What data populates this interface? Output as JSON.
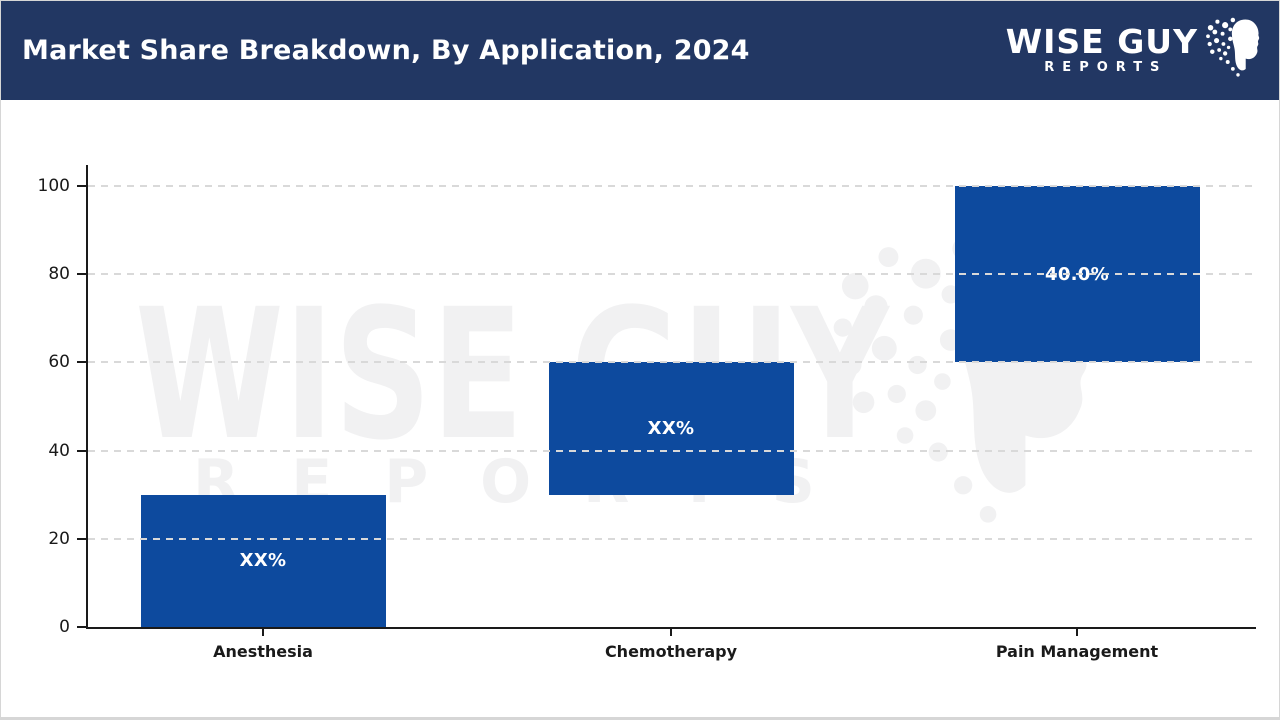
{
  "header": {
    "title": "Market Share Breakdown, By Application, 2024",
    "logo": {
      "line1": "WISE GUY",
      "line2": "REPORTS"
    }
  },
  "watermark": {
    "line1": "WISE GUY",
    "line2": "REPORTS"
  },
  "chart_data": {
    "type": "bar",
    "subtype": "floating-stepped-bars",
    "title": "Market Share Breakdown, By Application, 2024",
    "categories": [
      "Anesthesia",
      "Chemotherapy",
      "Pain Management"
    ],
    "series": [
      {
        "name": "Market Share (%)",
        "bases": [
          0,
          30,
          60
        ],
        "tops": [
          30,
          60,
          100
        ],
        "values": [
          30,
          30,
          40
        ]
      }
    ],
    "bar_labels": [
      "XX%",
      "XX%",
      "40.0%"
    ],
    "yticks": [
      0,
      20,
      40,
      60,
      80,
      100
    ],
    "ylim": [
      0,
      104.8
    ],
    "xlabel": "",
    "ylabel": "",
    "grid": "horizontal-dashed",
    "legend": "none",
    "bar_color": "#0d4a9e",
    "bar_label_color": "#ffffff"
  },
  "colors": {
    "header_bg": "#223763",
    "bar": "#0d4a9e",
    "gridline": "#d9d9d9",
    "axis": "#1a1a1a",
    "watermark": "#f1f1f2"
  }
}
